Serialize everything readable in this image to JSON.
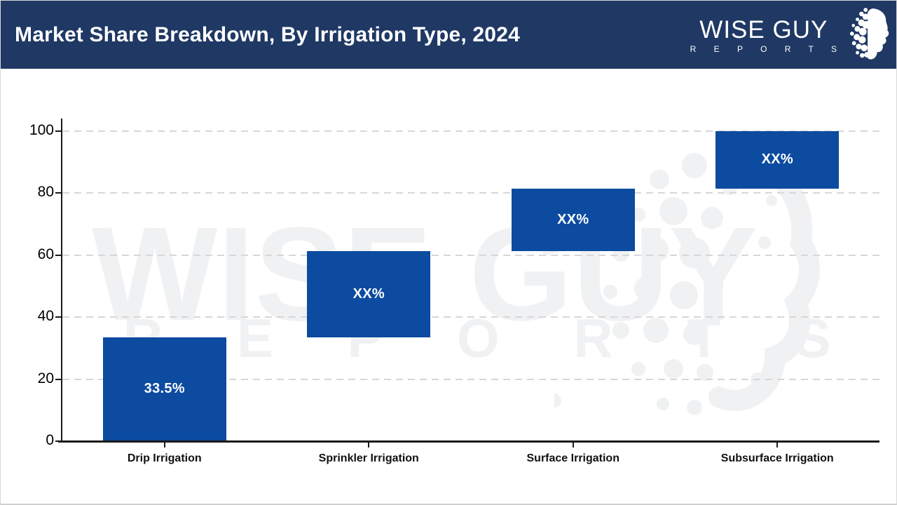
{
  "header": {
    "title": "Market Share Breakdown, By Irrigation Type, 2024",
    "bg_color": "#1F3864",
    "logo": {
      "line1": "WISE GUY",
      "line2": "R E P O R T S"
    }
  },
  "watermark": {
    "line1": "WISE GUY",
    "line2": "R E P O R T S"
  },
  "chart_data": {
    "type": "bar",
    "subtype": "waterfall-floating-segments",
    "title": "Market Share Breakdown, By Irrigation Type, 2024",
    "xlabel": "",
    "ylabel": "",
    "ylim": [
      0,
      100
    ],
    "y_ticks": [
      0,
      20,
      40,
      60,
      80,
      100
    ],
    "grid": "dashed-horizontal",
    "legend": "none",
    "bar_color": "#0C4BA0",
    "bar_label_color": "#ffffff",
    "categories": [
      "Drip Irrigation",
      "Sprinkler Irrigation",
      "Surface Irrigation",
      "Subsurface Irrigation"
    ],
    "bars": [
      {
        "category": "Drip Irrigation",
        "start": 0,
        "end": 33.5,
        "label": "33.5%"
      },
      {
        "category": "Sprinkler Irrigation",
        "start": 33.5,
        "end": 61.3,
        "label": "XX%"
      },
      {
        "category": "Surface Irrigation",
        "start": 61.3,
        "end": 81.5,
        "label": "XX%"
      },
      {
        "category": "Subsurface Irrigation",
        "start": 81.5,
        "end": 100,
        "label": "XX%"
      }
    ]
  }
}
